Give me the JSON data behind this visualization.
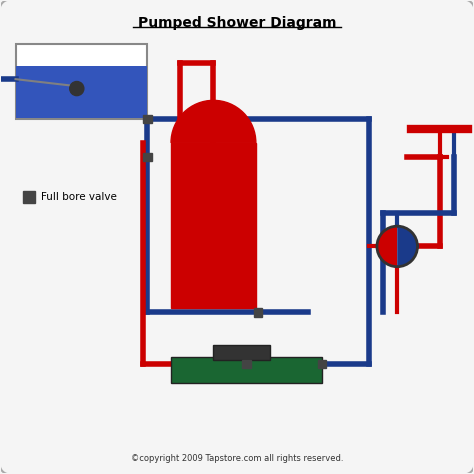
{
  "title": "Pumped Shower Diagram",
  "copyright": "©copyright 2009 Tapstore.com all rights reserved.",
  "bg_color": "#f5f5f5",
  "red": "#cc0000",
  "blue": "#1a3a8a",
  "water_blue": "#3355bb",
  "valve_color": "#444444",
  "boiler_red": "#cc0000",
  "pump_green": "#1a6632",
  "pipe_lw": 4,
  "valve_size": 8
}
